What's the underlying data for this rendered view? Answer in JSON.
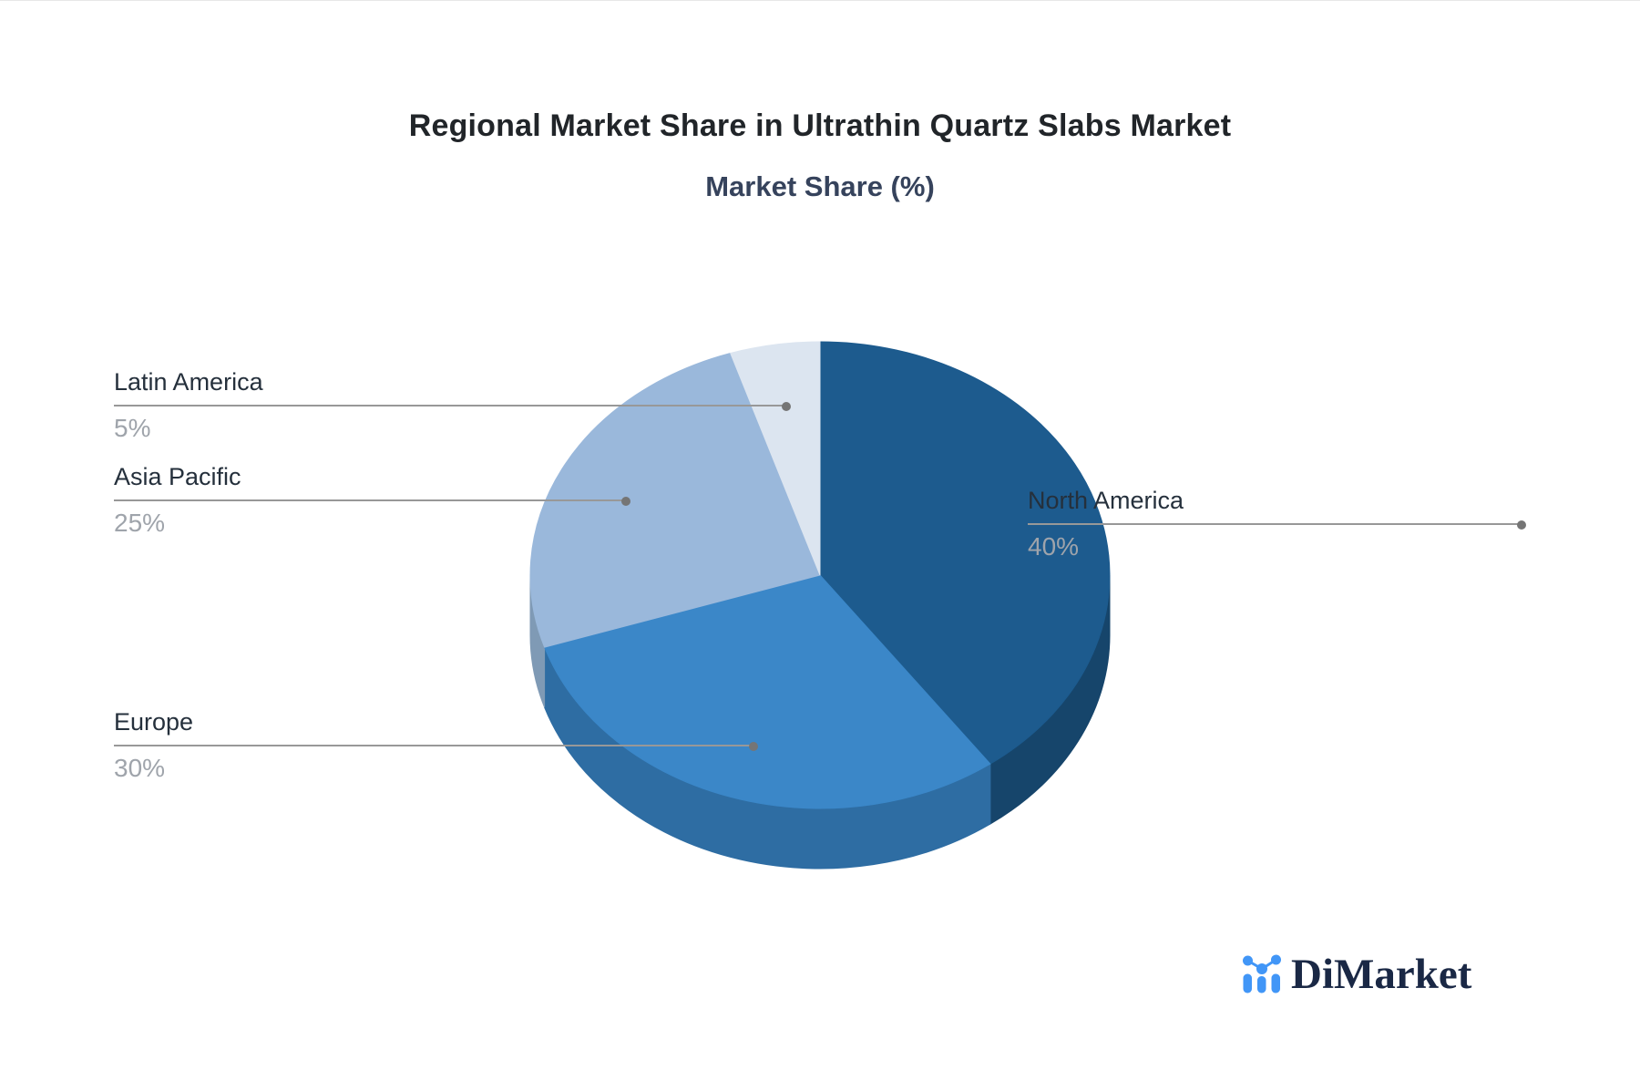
{
  "header": {
    "title": "Regional Market Share in Ultrathin Quartz Slabs Market",
    "subtitle": "Market Share (%)"
  },
  "chart_data": {
    "type": "pie",
    "style": "3d",
    "title": "Regional Market Share in Ultrathin Quartz Slabs Market",
    "subtitle": "Market Share (%)",
    "unit": "%",
    "start_angle": "12 o'clock, clockwise",
    "legend_position": "callout-labels",
    "categories": [
      "North America",
      "Europe",
      "Asia Pacific",
      "Latin America"
    ],
    "values": [
      40,
      30,
      25,
      5
    ],
    "segments": [
      {
        "name": "North America",
        "value": 40,
        "pct_label": "40%",
        "color": "#1d5b8e",
        "side_color": "#16456b",
        "label_side": "right"
      },
      {
        "name": "Europe",
        "value": 30,
        "pct_label": "30%",
        "color": "#3b87c8",
        "side_color": "#2e6da3",
        "label_side": "left"
      },
      {
        "name": "Asia Pacific",
        "value": 25,
        "pct_label": "25%",
        "color": "#9ab8db",
        "side_color": "#7f9ab5",
        "label_side": "left"
      },
      {
        "name": "Latin America",
        "value": 5,
        "pct_label": "5%",
        "color": "#dce5f0",
        "side_color": "#b8c6db",
        "label_side": "left"
      }
    ],
    "connector_color": "#989898",
    "dot_color": "#757575"
  },
  "styles": {
    "title_color": "#212529",
    "subtitle_color": "#36435c",
    "label_color": "#25303c",
    "pct_color": "#9fa4ab"
  },
  "logo": {
    "text": "DiMarket",
    "icon": "bar-and-line-chart-icon",
    "icon_color": "#4196f7",
    "text_color": "#1a2845"
  }
}
